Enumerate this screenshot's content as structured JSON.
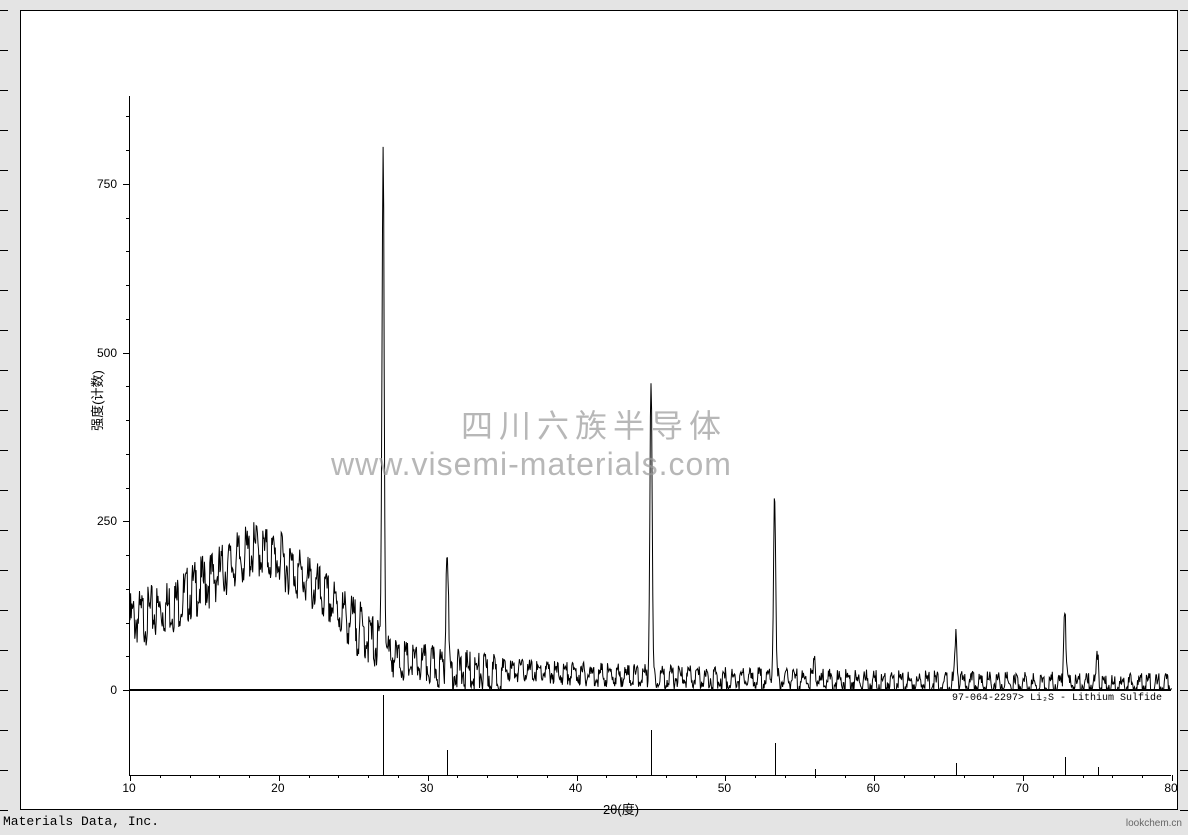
{
  "chart": {
    "type": "xrd-line",
    "background_color": "#ffffff",
    "page_background": "#e4e4e4",
    "line_color": "#000000",
    "line_width": 1,
    "xlim": [
      10,
      80
    ],
    "ylim": [
      0,
      880
    ],
    "yticks": [
      0,
      250,
      500,
      750
    ],
    "ytick_minor_step": 50,
    "xticks": [
      10,
      20,
      30,
      40,
      50,
      60,
      70,
      80
    ],
    "xtick_minor_step": 2,
    "xlabel": "2θ(度)",
    "ylabel": "强度(计数)",
    "label_fontsize": 13,
    "tick_fontsize": 12,
    "peaks_2theta": [
      27.0,
      31.3,
      45.0,
      53.3,
      56.0,
      65.5,
      72.8,
      75.0
    ],
    "peaks_intensity": [
      855,
      250,
      480,
      305,
      55,
      90,
      140,
      70
    ],
    "baseline_points": [
      [
        10,
        125
      ],
      [
        11,
        130
      ],
      [
        12,
        140
      ],
      [
        13,
        150
      ],
      [
        14,
        165
      ],
      [
        15,
        180
      ],
      [
        16,
        195
      ],
      [
        17,
        210
      ],
      [
        18,
        225
      ],
      [
        18.5,
        230
      ],
      [
        19,
        225
      ],
      [
        20,
        215
      ],
      [
        21,
        200
      ],
      [
        22,
        180
      ],
      [
        23,
        160
      ],
      [
        24,
        140
      ],
      [
        25,
        120
      ],
      [
        26,
        100
      ],
      [
        26.5,
        90
      ],
      [
        27.5,
        70
      ],
      [
        28,
        60
      ],
      [
        29,
        55
      ],
      [
        30,
        52
      ],
      [
        31,
        48
      ],
      [
        32,
        45
      ],
      [
        34,
        40
      ],
      [
        36,
        38
      ],
      [
        38,
        35
      ],
      [
        40,
        33
      ],
      [
        42,
        31
      ],
      [
        44,
        30
      ],
      [
        46,
        28
      ],
      [
        48,
        27
      ],
      [
        50,
        26
      ],
      [
        52,
        25
      ],
      [
        54,
        24
      ],
      [
        56,
        23
      ],
      [
        58,
        22
      ],
      [
        60,
        21
      ],
      [
        62,
        20
      ],
      [
        64,
        20
      ],
      [
        66,
        19
      ],
      [
        68,
        19
      ],
      [
        70,
        18
      ],
      [
        72,
        18
      ],
      [
        74,
        17
      ],
      [
        76,
        17
      ],
      [
        78,
        16
      ],
      [
        80,
        16
      ]
    ],
    "noise_amplitude": 18
  },
  "reference": {
    "label": "97-064-2297> Li₂S - Lithium Sulfide",
    "lines_2theta": [
      27.0,
      31.3,
      45.0,
      53.3,
      56.0,
      65.5,
      72.8,
      75.0
    ],
    "lines_height": [
      80,
      25,
      45,
      32,
      6,
      12,
      18,
      8
    ],
    "color": "#000000"
  },
  "watermark": {
    "line1": "四川六族半导体",
    "line2": "www.visemi-materials.com",
    "color": "#999999",
    "fontsize": 32
  },
  "footer": {
    "left": "Materials Data, Inc.",
    "right": "lookchem.cn"
  },
  "outer_ruler": {
    "tick_count": 20
  }
}
